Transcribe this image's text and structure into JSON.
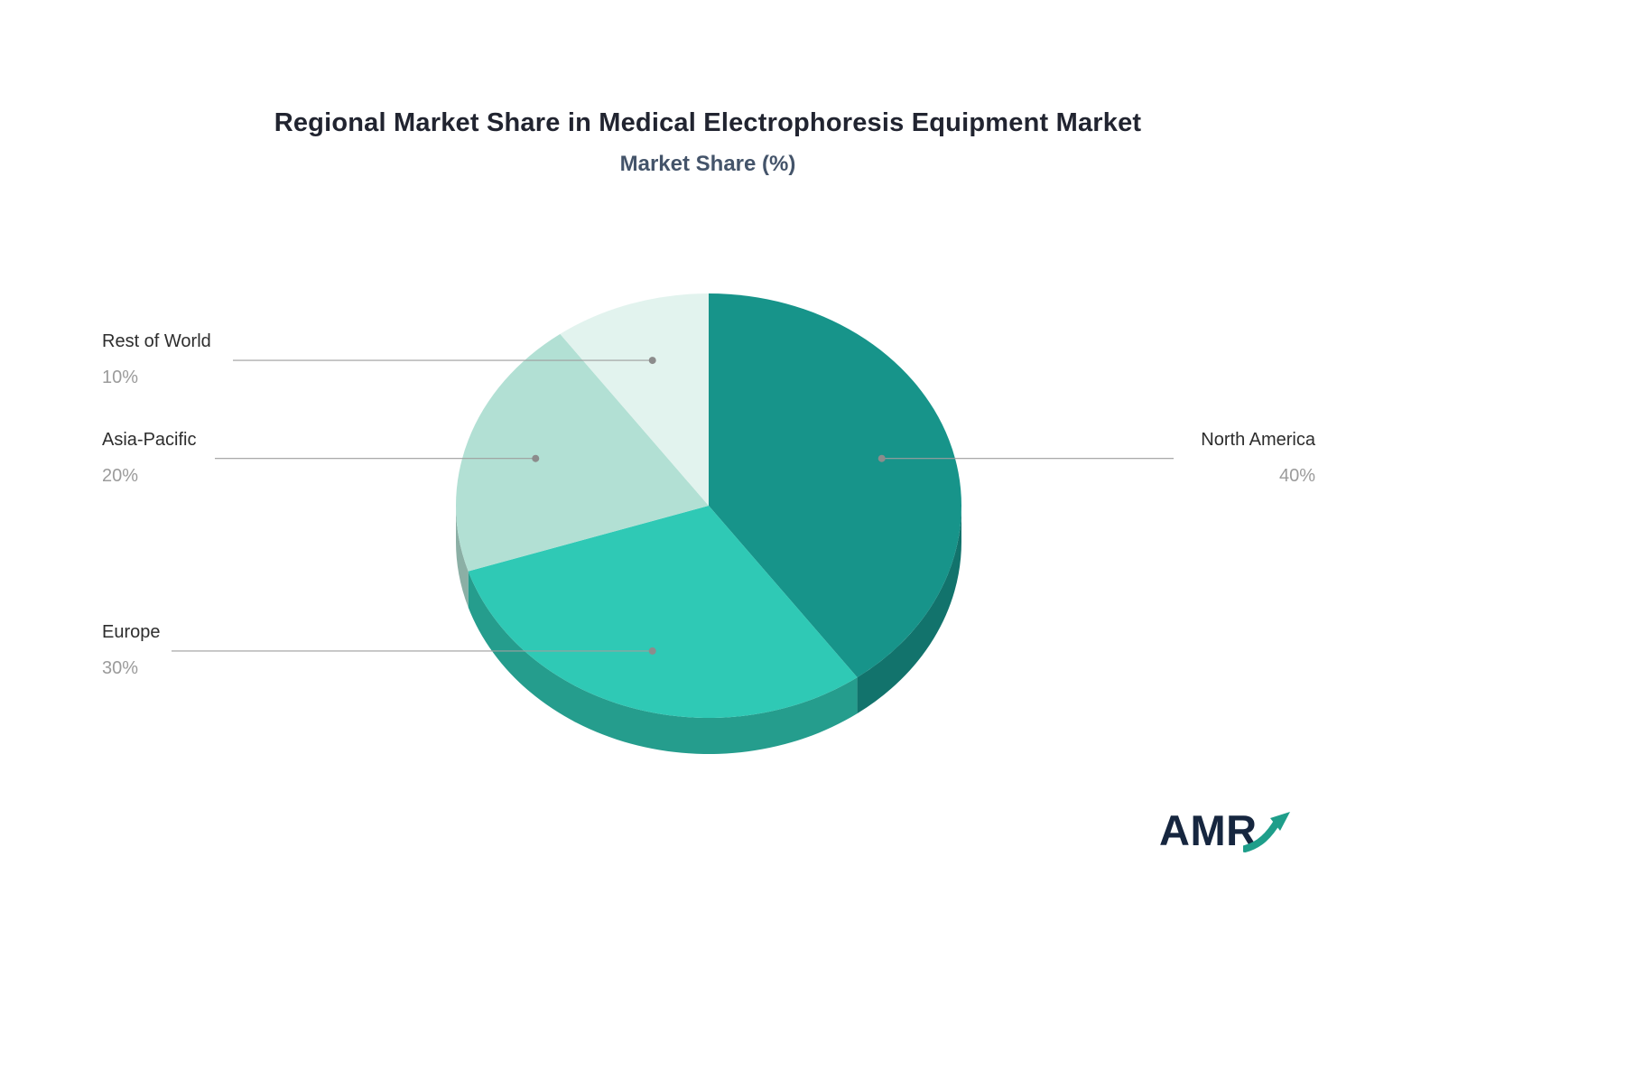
{
  "title": "Regional Market Share in Medical Electrophoresis Equipment Market",
  "subtitle": "Market Share (%)",
  "logo": {
    "text": "AMR",
    "arrow_color": "#1e9e8a",
    "text_color": "#16263f"
  },
  "chart_data": {
    "type": "pie",
    "title": "Regional Market Share in Medical Electrophoresis Equipment Market",
    "subtitle": "Market Share (%)",
    "unit": "%",
    "start_angle_deg": -90,
    "direction": "clockwise",
    "legend_position": "leader-lines",
    "style": {
      "leader_line_color": "#9e9e9e",
      "dot_color": "#8c8c8c",
      "effect": "3d-depth"
    },
    "categories": [
      "North America",
      "Europe",
      "Asia-Pacific",
      "Rest of World"
    ],
    "values": [
      40,
      30,
      20,
      10
    ],
    "slices": [
      {
        "label": "North America",
        "value": 40,
        "display": "40%",
        "color": "#17948a"
      },
      {
        "label": "Europe",
        "value": 30,
        "display": "30%",
        "color": "#2fc9b5"
      },
      {
        "label": "Asia-Pacific",
        "value": 20,
        "display": "20%",
        "color": "#b2e0d4"
      },
      {
        "label": "Rest of World",
        "value": 10,
        "display": "10%",
        "color": "#e2f3ee"
      }
    ]
  }
}
